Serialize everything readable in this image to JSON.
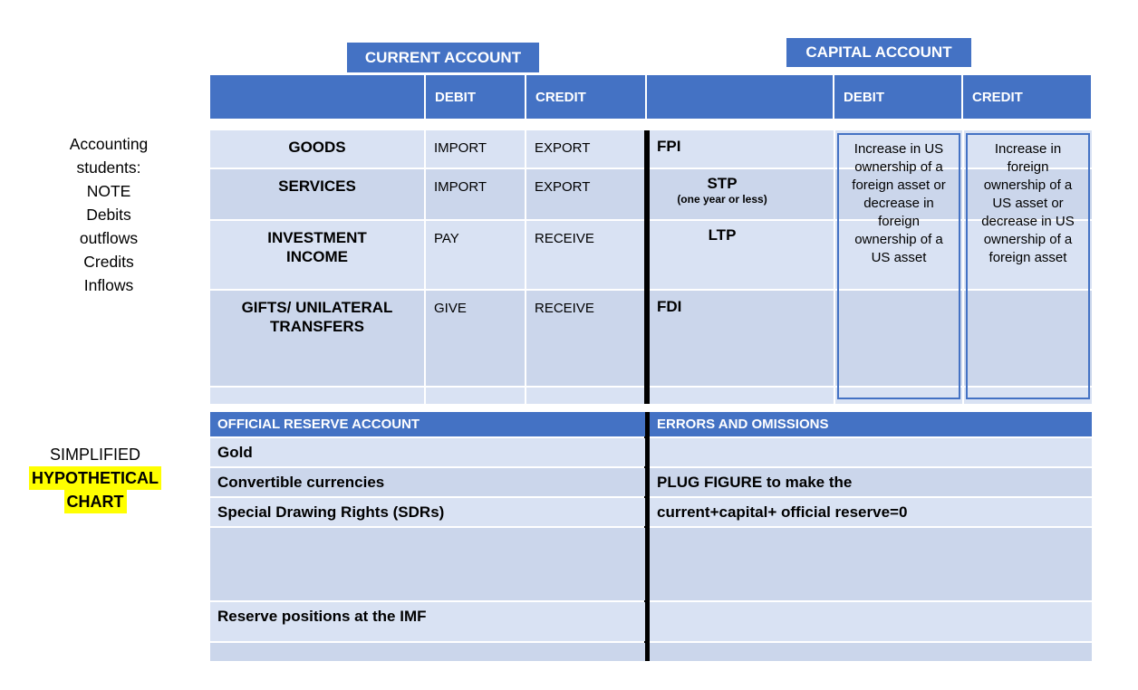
{
  "colors": {
    "header_blue": "#4472C4",
    "band_light": "#D9E2F3",
    "band_dark": "#CBD6EB",
    "divider_black": "#000000",
    "note_border_blue": "#4472C4",
    "highlight_yellow": "#FFFF00"
  },
  "annotations": {
    "accounting_note_lines": [
      "Accounting",
      "students:",
      "NOTE",
      "Debits",
      "outflows",
      "Credits",
      "Inflows"
    ],
    "simplified_label": {
      "line1": "SIMPLIFIED",
      "line2": "HYPOTHETICAL",
      "line3": "CHART"
    }
  },
  "titles": {
    "current_account": "CURRENT ACCOUNT",
    "capital_account": "CAPITAL ACCOUNT"
  },
  "current_account_table": {
    "debit_header": "DEBIT",
    "credit_header": "CREDIT",
    "rows": [
      {
        "label_line1": "GOODS",
        "label_line2": "",
        "debit": "IMPORT",
        "credit": "EXPORT"
      },
      {
        "label_line1": "SERVICES",
        "label_line2": "",
        "debit": "IMPORT",
        "credit": "EXPORT"
      },
      {
        "label_line1": "INVESTMENT",
        "label_line2": "INCOME",
        "debit": "PAY",
        "credit": "RECEIVE"
      },
      {
        "label_line1": "GIFTS/ UNILATERAL",
        "label_line2": "TRANSFERS",
        "debit": "GIVE",
        "credit": "RECEIVE"
      }
    ]
  },
  "capital_account_table": {
    "debit_header": "DEBIT",
    "credit_header": "CREDIT",
    "row_labels": {
      "fpi": "FPI",
      "stp": "STP",
      "stp_sub": "(one year or less)",
      "ltp": "LTP",
      "fdi": "FDI"
    },
    "debit_note": "Increase in US ownership of a foreign asset or decrease in foreign ownership of a US asset",
    "credit_note": "Increase in foreign ownership of a US asset or decrease in US ownership of a foreign asset"
  },
  "official_reserve_table": {
    "header": "OFFICIAL RESERVE ACCOUNT",
    "rows": [
      "Gold",
      "Convertible currencies",
      "Special Drawing Rights (SDRs)",
      "Reserve positions at the IMF"
    ]
  },
  "errors_omissions_table": {
    "header": "ERRORS AND OMISSIONS",
    "plug_line1": "PLUG FIGURE to make the",
    "plug_line2": "current+capital+ official reserve=0"
  }
}
